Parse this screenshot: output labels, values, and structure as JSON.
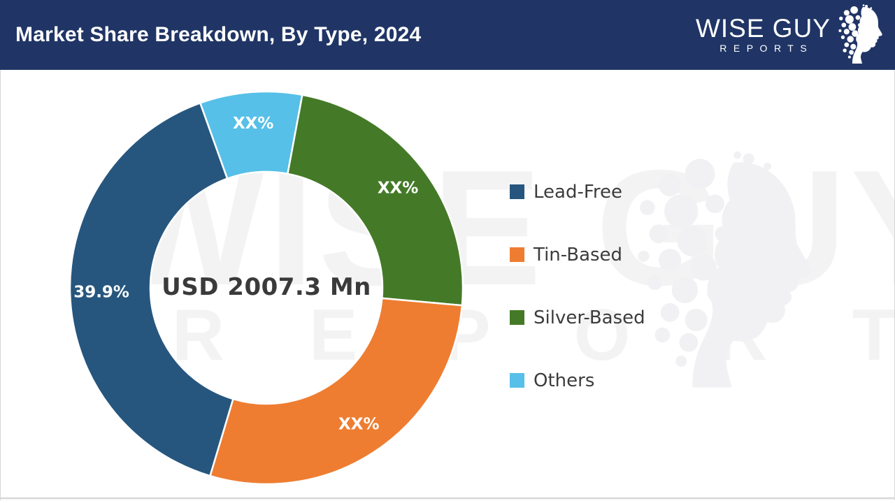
{
  "header": {
    "title": "Market Share Breakdown, By Type, 2024",
    "bg_color": "#203566",
    "logo": {
      "line1": "WISE GUY",
      "line2": "REPORTS"
    }
  },
  "watermark": {
    "line1": "WISE GUY",
    "line2": "R E P O R T S"
  },
  "chart_data": {
    "type": "pie",
    "subtype": "donut",
    "title": "Market Share Breakdown, By Type, 2024",
    "center_label": "USD 2007.3 Mn",
    "start_angle_deg": -19.7,
    "slices": [
      {
        "name": "Others",
        "label": "XX%",
        "pct": 8.4,
        "color": "#56c0e8"
      },
      {
        "name": "Silver-Based",
        "label": "XX%",
        "pct": 23.5,
        "color": "#447a27"
      },
      {
        "name": "Tin-Based",
        "label": "XX%",
        "pct": 28.2,
        "color": "#ee7d31"
      },
      {
        "name": "Lead-Free",
        "label": "39.9%",
        "pct": 39.9,
        "color": "#26567e"
      }
    ],
    "legend_position": "right",
    "legend": [
      {
        "label": "Lead-Free",
        "color": "#26567e"
      },
      {
        "label": "Tin-Based",
        "color": "#ee7d31"
      },
      {
        "label": "Silver-Based",
        "color": "#447a27"
      },
      {
        "label": "Others",
        "color": "#56c0e8"
      }
    ]
  }
}
